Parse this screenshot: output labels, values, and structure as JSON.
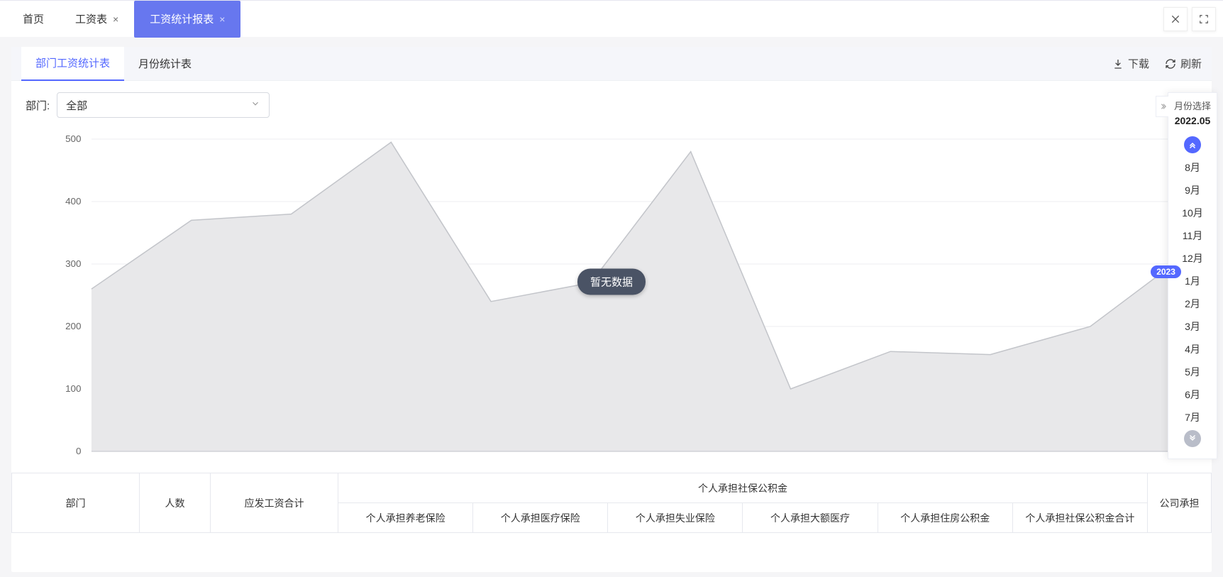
{
  "tabs": {
    "items": [
      {
        "label": "首页",
        "closable": false,
        "active": false
      },
      {
        "label": "工资表",
        "closable": true,
        "active": false
      },
      {
        "label": "工资统计报表",
        "closable": true,
        "active": true
      }
    ]
  },
  "subtabs": {
    "items": [
      {
        "label": "部门工资统计表",
        "active": true
      },
      {
        "label": "月份统计表",
        "active": false
      }
    ]
  },
  "actions": {
    "download": "下载",
    "refresh": "刷新"
  },
  "filter": {
    "label": "部门:",
    "select_value": "全部"
  },
  "chart": {
    "type": "area",
    "ylim": [
      0,
      500
    ],
    "ytick_step": 100,
    "ylabels": [
      "0",
      "100",
      "200",
      "300",
      "400",
      "500"
    ],
    "values": [
      260,
      370,
      380,
      495,
      240,
      270,
      480,
      100,
      160,
      155,
      200,
      320
    ],
    "n_points": 12,
    "area_color": "#e8e8ea",
    "line_color": "#c3c5ca",
    "grid_color": "#eceef1",
    "axis_color": "#c9ccd2",
    "background_color": "#ffffff",
    "label_fontsize": 13,
    "nodata_text": "暂无数据",
    "nodata_bg": "#4a5365",
    "nodata_text_color": "#ffffff"
  },
  "table": {
    "group_header": "个人承担社保公积金",
    "fixed_columns": [
      "部门",
      "人数",
      "应发工资合计"
    ],
    "sub_columns": [
      "个人承担养老保险",
      "个人承担医疗保险",
      "个人承担失业保险",
      "个人承担大额医疗",
      "个人承担住房公积金",
      "个人承担社保公积金合计"
    ],
    "overflow_column": "公司承担"
  },
  "month_panel": {
    "title": "月份选择",
    "value": "2022.05",
    "year_badge": "2023",
    "items": [
      "8月",
      "9月",
      "10月",
      "11月",
      "12月",
      "1月",
      "2月",
      "3月",
      "4月",
      "5月",
      "6月",
      "7月"
    ],
    "year_badge_index": 5
  },
  "colors": {
    "accent": "#5468ff",
    "tab_active_bg": "#6777ef"
  }
}
